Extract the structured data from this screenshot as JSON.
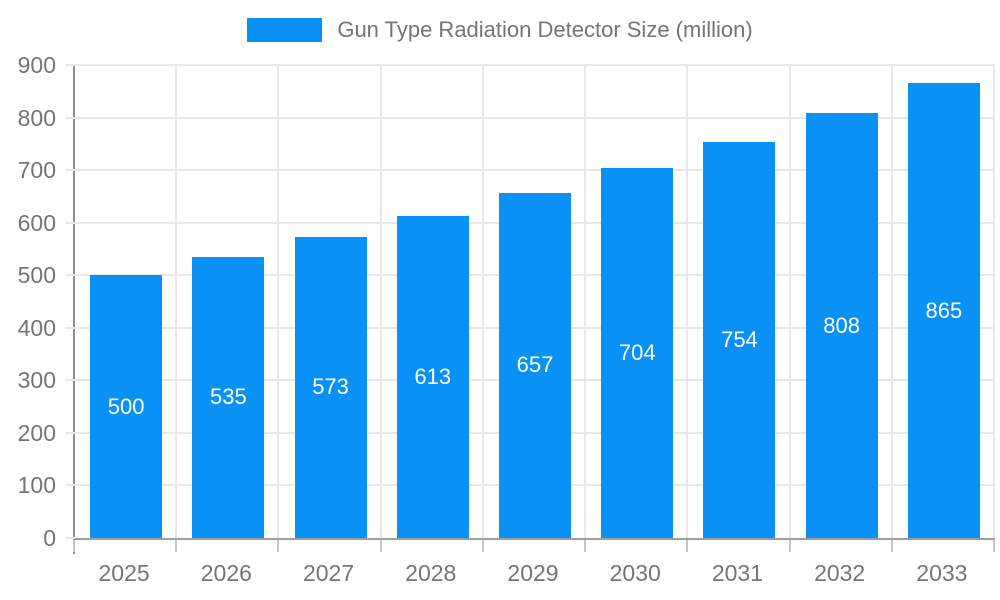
{
  "legend": {
    "label": "Gun Type Radiation Detector Size (million)"
  },
  "chart_data": {
    "type": "bar",
    "title": "Gun Type Radiation Detector Size (million)",
    "categories": [
      "2025",
      "2026",
      "2027",
      "2028",
      "2029",
      "2030",
      "2031",
      "2032",
      "2033"
    ],
    "values": [
      500,
      535,
      573,
      613,
      657,
      704,
      754,
      808,
      865
    ],
    "series": [
      {
        "name": "Gun Type Radiation Detector Size (million)",
        "values": [
          500,
          535,
          573,
          613,
          657,
          704,
          754,
          808,
          865
        ]
      }
    ],
    "xlabel": "",
    "ylabel": "",
    "ylim": [
      0,
      900
    ],
    "ytick_step": 100,
    "ytick_labels": [
      "0",
      "100",
      "200",
      "300",
      "400",
      "500",
      "600",
      "700",
      "800",
      "900"
    ],
    "grid": true,
    "legend_position": "top",
    "value_labels": "inside-center",
    "colors": {
      "bar": "#0991f5",
      "value_label": "#ffffff",
      "axis_text": "#757575",
      "grid_line": "#e8e8e8",
      "axis_line": "#8f8f8f"
    }
  }
}
